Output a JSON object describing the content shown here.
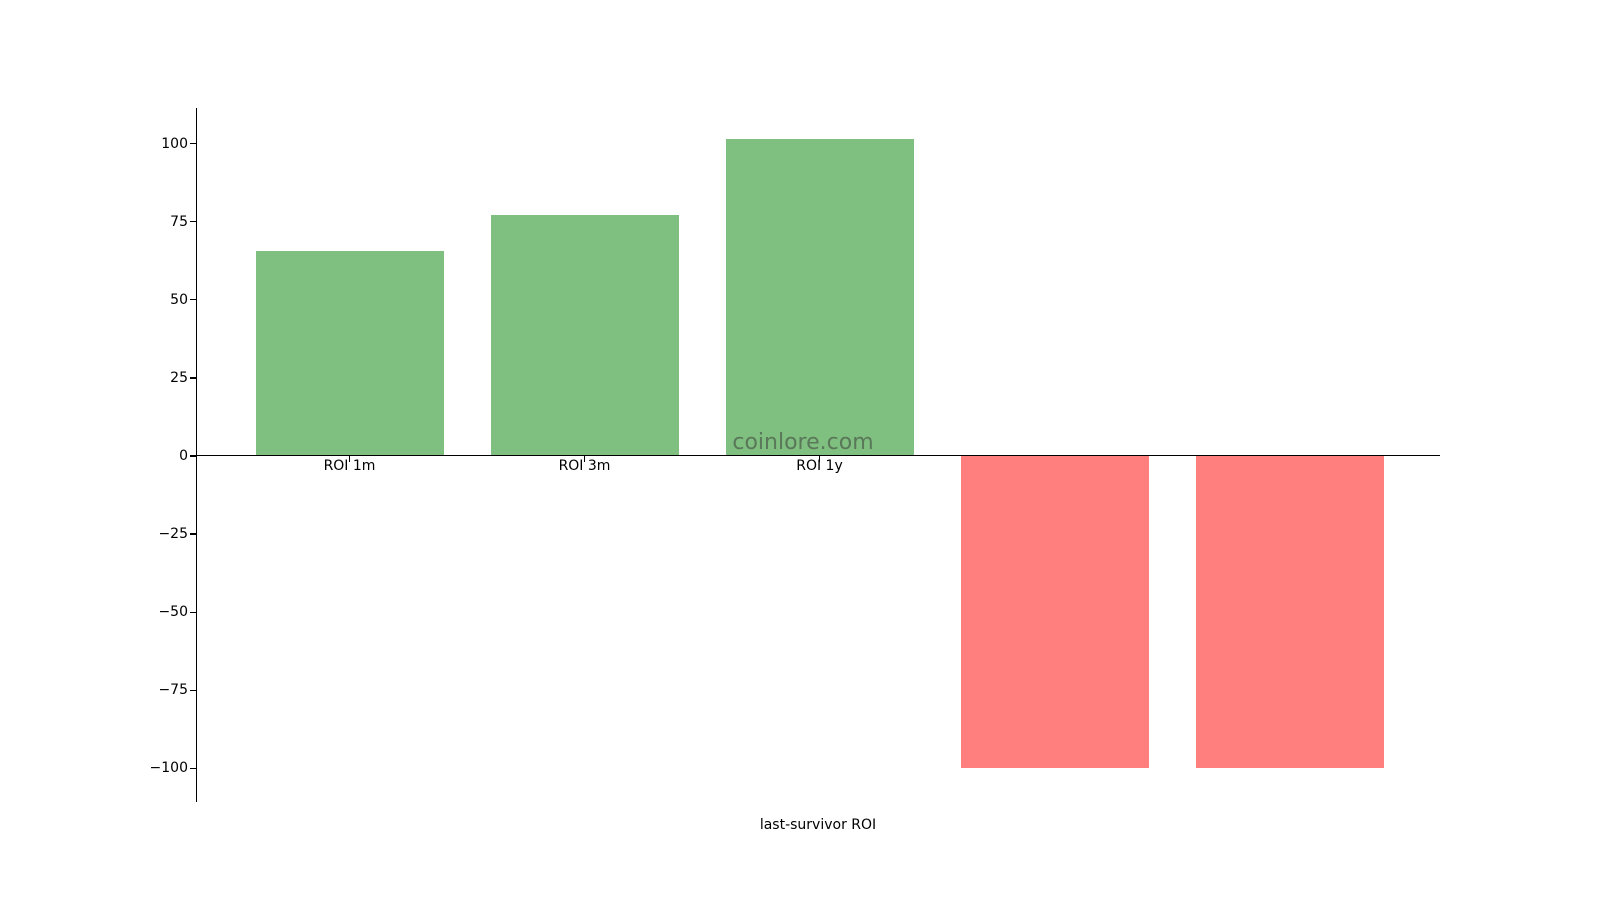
{
  "chart_data": {
    "type": "bar",
    "title": "",
    "xlabel": "last-survivor ROI",
    "ylabel": "",
    "categories": [
      "ROI 1m",
      "ROI 3m",
      "ROI 1y",
      "",
      ""
    ],
    "values": [
      65.6,
      77.3,
      101.4,
      -100,
      -100
    ],
    "bar_colors": [
      "#7fbf7f",
      "#7fbf7f",
      "#7fbf7f",
      "#ff7f7f",
      "#ff7f7f"
    ],
    "positive_color": "#7fbf7f",
    "negative_color": "#ff7f7f",
    "ytick_values": [
      100,
      75,
      50,
      25,
      0,
      -25,
      -50,
      -75,
      -100
    ],
    "ytick_labels": [
      "100",
      "75",
      "50",
      "25",
      "0",
      "−25",
      "−50",
      "−75",
      "−100"
    ],
    "ylim": [
      -110.5,
      111.3
    ],
    "grid": false,
    "legend": null,
    "axis_color": "#000000",
    "watermark": "coinlore.com"
  }
}
